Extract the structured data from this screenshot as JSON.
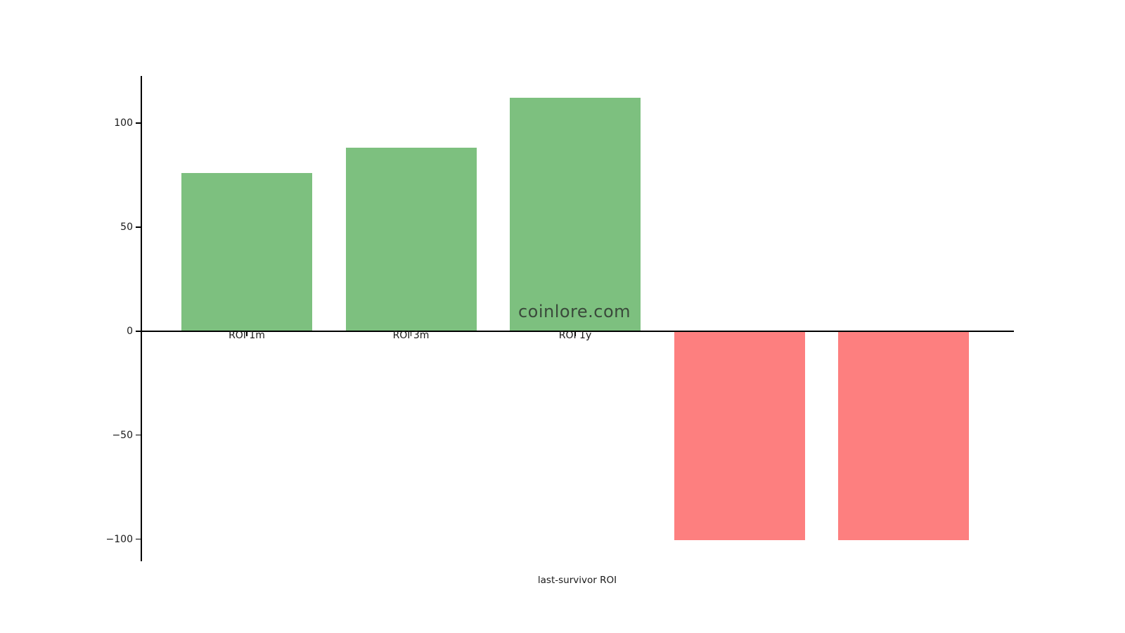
{
  "chart_data": {
    "type": "bar",
    "categories": [
      "ROI 1m",
      "ROI 3m",
      "ROI 1y",
      "",
      ""
    ],
    "values": [
      76,
      88,
      112,
      -100,
      -100
    ],
    "title": "",
    "xlabel": "last-survivor ROI",
    "ylabel": "",
    "ylim": [
      -110.6,
      122.6
    ],
    "yticks": [
      -100,
      -50,
      0,
      50,
      100
    ],
    "ytick_labels": [
      "−100",
      "−50",
      "0",
      "50",
      "100"
    ],
    "grid": false,
    "legend": null,
    "positive_color": "#7dc07f",
    "negative_color": "#fd7f7f",
    "axis_color": "#000000",
    "tick_text_color": "#1a1a1a",
    "watermark": "coinlore.com"
  }
}
